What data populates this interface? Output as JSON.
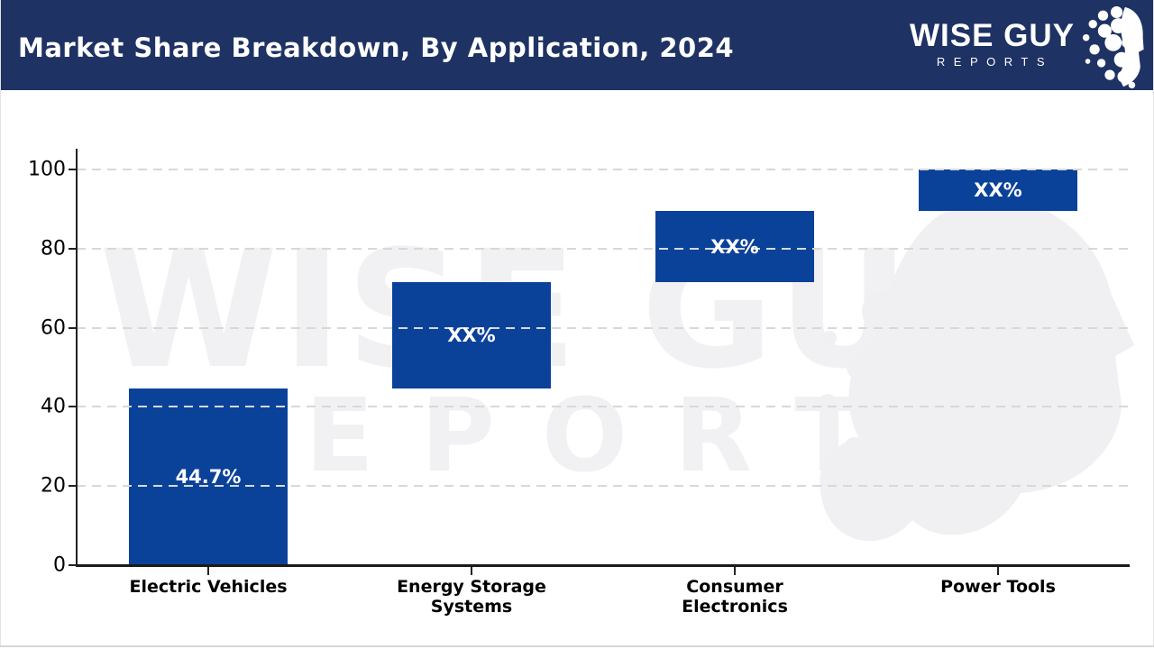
{
  "header": {
    "title": "Market Share Breakdown, By Application, 2024",
    "logo": {
      "line1": "WISE GUY",
      "line2": "REPORTS"
    }
  },
  "watermark": {
    "line1": "WISE GUY",
    "line2": "REPORTS"
  },
  "chart_data": {
    "type": "bar",
    "subtype": "waterfall",
    "title": "Market Share Breakdown, By Application, 2024",
    "categories": [
      "Electric Vehicles",
      "Energy Storage Systems",
      "Consumer Electronics",
      "Power Tools"
    ],
    "bars": [
      {
        "category_lines": [
          "Electric Vehicles"
        ],
        "start": 0,
        "end": 44.7,
        "label": "44.7%"
      },
      {
        "category_lines": [
          "Energy Storage",
          "Systems"
        ],
        "start": 44.7,
        "end": 71.5,
        "label": "XX%"
      },
      {
        "category_lines": [
          "Consumer",
          "Electronics"
        ],
        "start": 71.5,
        "end": 89.5,
        "label": "XX%"
      },
      {
        "category_lines": [
          "Power Tools"
        ],
        "start": 89.5,
        "end": 100,
        "label": "XX%"
      }
    ],
    "yticks": [
      0,
      20,
      40,
      60,
      80,
      100
    ],
    "ylim": [
      0,
      100
    ],
    "xlabel": "",
    "ylabel": "",
    "legend": "none",
    "grid": "horizontal-dashed",
    "bar_color": "#0b4299",
    "bar_label_color": "#ffffff",
    "colors": {
      "header_bg": "#1e3263",
      "axis": "#212121",
      "gridline": "#d8d8d8",
      "watermark": "#f1f1f4"
    }
  }
}
